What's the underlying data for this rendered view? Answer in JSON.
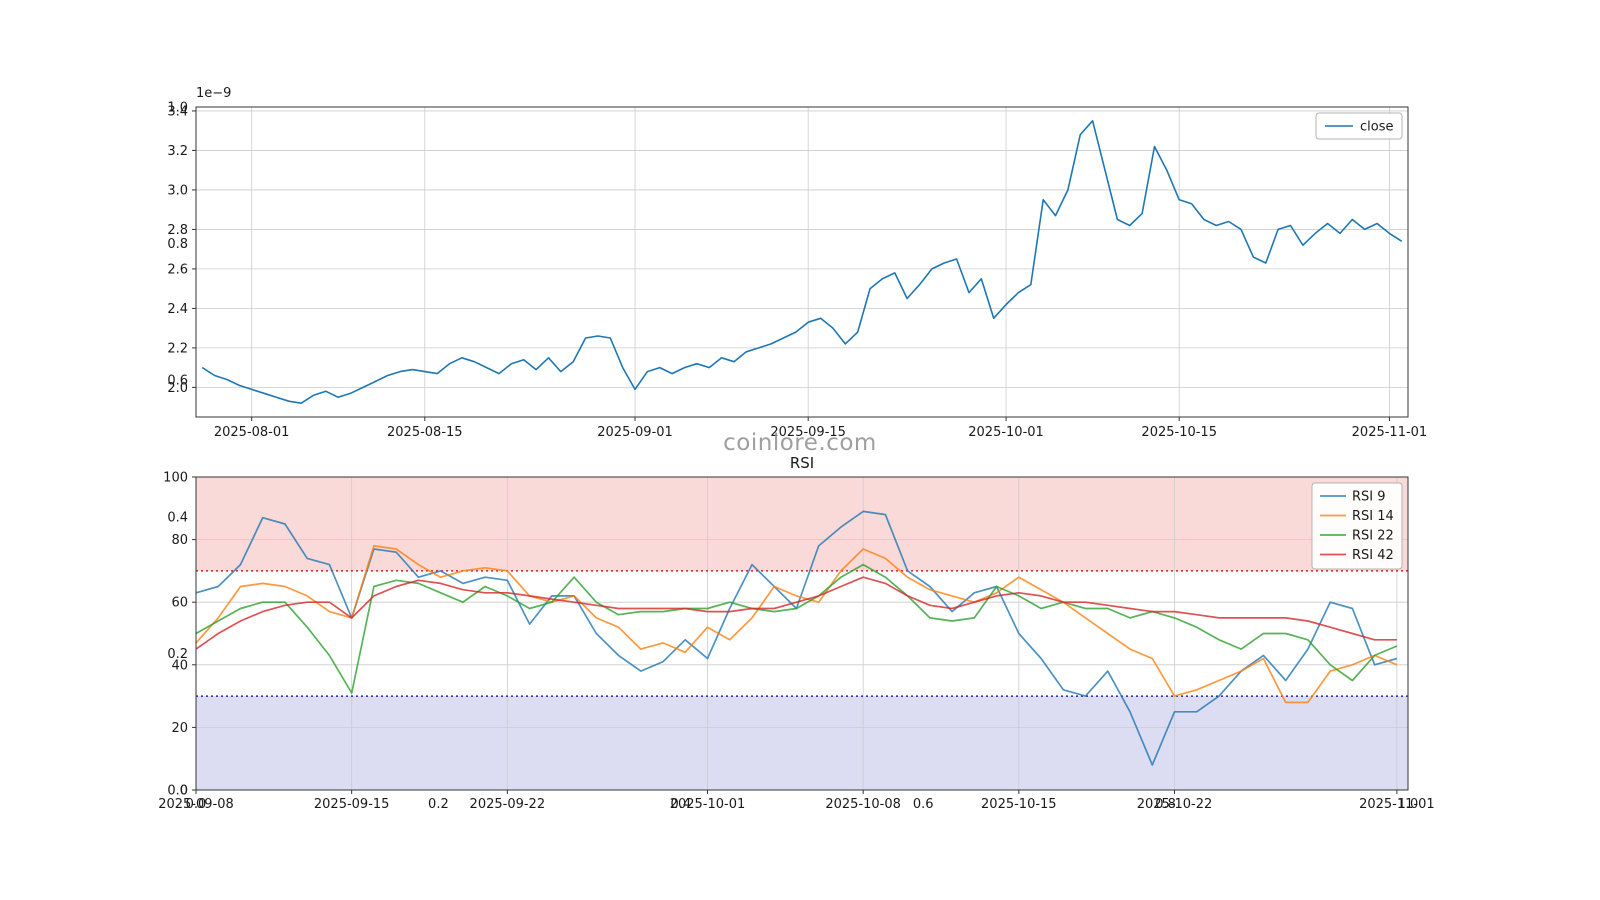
{
  "watermark": "coinlore.com",
  "colors": {
    "close_line": "#1f77b4",
    "grid": "#cccccc",
    "spine": "#343434",
    "tick_text": "#1a1a1a",
    "overbought_band": "#fad9d9",
    "oversold_band": "#dcdcf2",
    "overbought_line": "#cc0000",
    "oversold_line": "#00008b",
    "legend_border": "#b3b3b3",
    "watermark_text": "#8f8f8f"
  },
  "chart_data": [
    {
      "type": "line",
      "name": "price_chart",
      "legend": [
        "close"
      ],
      "ylabel_offset": "1e−9",
      "x_start": "2025-07-28",
      "x_interval_days": 1,
      "ylim": [
        1.85,
        3.42
      ],
      "grid": true,
      "legend_position": "upper right"
    },
    {
      "type": "line",
      "name": "rsi_chart",
      "title": "RSI",
      "legend": [
        "RSI 9",
        "RSI 14",
        "RSI 22",
        "RSI 42"
      ],
      "x_start": "2025-09-08",
      "x_interval_days": 1,
      "ylim": [
        0,
        100
      ],
      "grid": true,
      "overbought_level": 70,
      "oversold_level": 30,
      "legend_position": "upper right"
    }
  ],
  "price_chart": {
    "type": "line",
    "series_name": "close",
    "offset_label": "1e−9",
    "start_date": "2025-07-28",
    "interval_days": 1,
    "ylim": [
      1.85,
      3.42
    ],
    "yticks": [
      2.0,
      2.2,
      2.4,
      2.6,
      2.8,
      3.0,
      3.2,
      3.4
    ],
    "xticks": [
      "2025-08-01",
      "2025-08-15",
      "2025-09-01",
      "2025-09-15",
      "2025-10-01",
      "2025-10-15",
      "2025-11-01"
    ],
    "values": [
      2.1,
      2.06,
      2.04,
      2.01,
      1.99,
      1.97,
      1.95,
      1.93,
      1.92,
      1.96,
      1.98,
      1.95,
      1.97,
      2.0,
      2.03,
      2.06,
      2.08,
      2.09,
      2.08,
      2.07,
      2.12,
      2.15,
      2.13,
      2.1,
      2.07,
      2.12,
      2.14,
      2.09,
      2.15,
      2.08,
      2.13,
      2.25,
      2.26,
      2.25,
      2.1,
      1.99,
      2.08,
      2.1,
      2.07,
      2.1,
      2.12,
      2.1,
      2.15,
      2.13,
      2.18,
      2.2,
      2.22,
      2.25,
      2.28,
      2.33,
      2.35,
      2.3,
      2.22,
      2.28,
      2.5,
      2.55,
      2.58,
      2.45,
      2.52,
      2.6,
      2.63,
      2.65,
      2.48,
      2.55,
      2.35,
      2.42,
      2.48,
      2.52,
      2.95,
      2.87,
      3.0,
      3.28,
      3.35,
      3.1,
      2.85,
      2.82,
      2.88,
      3.22,
      3.1,
      2.95,
      2.93,
      2.85,
      2.82,
      2.84,
      2.8,
      2.66,
      2.63,
      2.8,
      2.82,
      2.72,
      2.78,
      2.83,
      2.78,
      2.85,
      2.8,
      2.83,
      2.78,
      2.74
    ]
  },
  "rsi_chart": {
    "type": "line",
    "title": "RSI",
    "start_date": "2025-09-08",
    "interval_days": 1,
    "ylim": [
      0,
      100
    ],
    "yticks": [
      0,
      20,
      40,
      60,
      80,
      100
    ],
    "xticks": [
      "2025-09-08",
      "2025-09-15",
      "2025-09-22",
      "2025-10-01",
      "2025-10-08",
      "2025-10-15",
      "2025-10-22",
      "2025-11-01"
    ],
    "overbought_level": 70,
    "oversold_level": 30,
    "series": [
      {
        "name": "RSI 9",
        "color": "#1f77b4",
        "values": [
          63,
          65,
          72,
          87,
          85,
          74,
          72,
          55,
          77,
          76,
          68,
          70,
          66,
          68,
          67,
          53,
          62,
          62,
          50,
          43,
          38,
          41,
          48,
          42,
          58,
          72,
          65,
          58,
          78,
          84,
          89,
          88,
          70,
          65,
          57,
          63,
          65,
          50,
          42,
          32,
          30,
          38,
          25,
          8,
          25,
          25,
          30,
          38,
          43,
          35,
          45,
          60,
          58,
          40,
          42
        ]
      },
      {
        "name": "RSI 14",
        "color": "#ff7f0e",
        "values": [
          47,
          55,
          65,
          66,
          65,
          62,
          57,
          55,
          78,
          77,
          72,
          68,
          70,
          71,
          70,
          62,
          60,
          62,
          55,
          52,
          45,
          47,
          44,
          52,
          48,
          55,
          65,
          62,
          60,
          70,
          77,
          74,
          68,
          64,
          62,
          60,
          63,
          68,
          64,
          60,
          55,
          50,
          45,
          42,
          30,
          32,
          35,
          38,
          42,
          28,
          28,
          38,
          40,
          43,
          40
        ]
      },
      {
        "name": "RSI 22",
        "color": "#2ca02c",
        "values": [
          50,
          54,
          58,
          60,
          60,
          52,
          43,
          31,
          65,
          67,
          66,
          63,
          60,
          65,
          62,
          58,
          60,
          68,
          60,
          56,
          57,
          57,
          58,
          58,
          60,
          58,
          57,
          58,
          62,
          68,
          72,
          68,
          62,
          55,
          54,
          55,
          65,
          62,
          58,
          60,
          58,
          58,
          55,
          57,
          55,
          52,
          48,
          45,
          50,
          50,
          48,
          40,
          35,
          43,
          46
        ]
      },
      {
        "name": "RSI 42",
        "color": "#d62728",
        "values": [
          45,
          50,
          54,
          57,
          59,
          60,
          60,
          55,
          62,
          65,
          67,
          66,
          64,
          63,
          63,
          62,
          61,
          60,
          59,
          58,
          58,
          58,
          58,
          57,
          57,
          58,
          58,
          60,
          62,
          65,
          68,
          66,
          62,
          59,
          58,
          60,
          62,
          63,
          62,
          60,
          60,
          59,
          58,
          57,
          57,
          56,
          55,
          55,
          55,
          55,
          54,
          52,
          50,
          48,
          48
        ]
      }
    ]
  },
  "artifact_axis": {
    "left_ticks": [
      "1.0",
      "0.8",
      "0.6",
      "0.4",
      "0.2",
      "0.0"
    ],
    "bottom_ticks": [
      "0.0",
      "0.2",
      "0.4",
      "0.6",
      "0.8",
      "1.0"
    ]
  }
}
